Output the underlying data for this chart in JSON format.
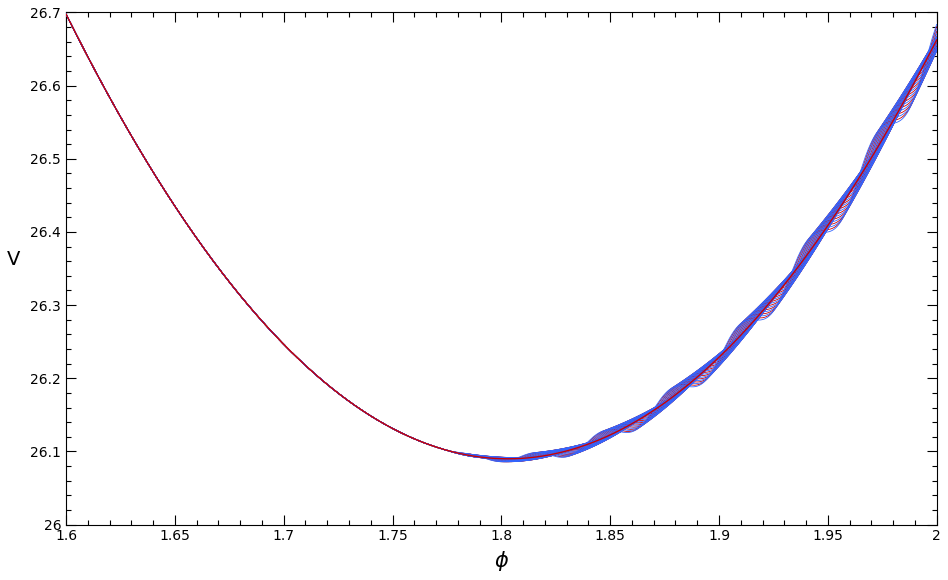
{
  "phi_min": 1.6,
  "phi_max": 2.0,
  "V_min": 26.0,
  "V_max": 26.7,
  "xlabel": "$\\phi$",
  "ylabel": "V",
  "xticks": [
    1.6,
    1.65,
    1.7,
    1.75,
    1.8,
    1.85,
    1.9,
    1.95,
    2.0
  ],
  "yticks": [
    26.0,
    26.1,
    26.2,
    26.3,
    26.4,
    26.5,
    26.6,
    26.7
  ],
  "background_color": "#ffffff",
  "red_color": "#cc0000",
  "blue_color": "#3366ff",
  "n_curves": 40,
  "phi_split": 1.775,
  "base_A": 26.09,
  "base_phi0": 1.803,
  "base_scale": 14.75,
  "amplitude_max": 0.025,
  "freq": 200.0
}
